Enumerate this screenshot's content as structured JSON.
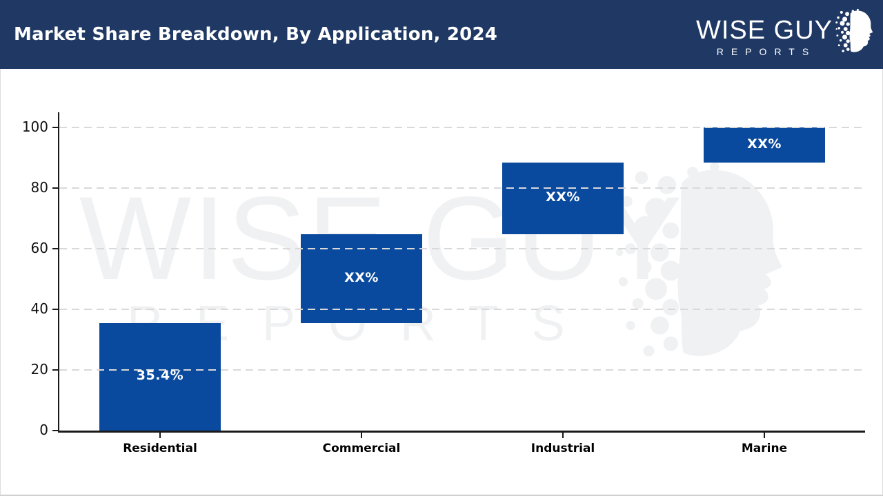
{
  "header": {
    "title": "Market Share Breakdown, By Application, 2024",
    "logo_line1": "WISE GUY",
    "logo_line2": "REPORTS"
  },
  "watermark": {
    "line1": "WISE GUY",
    "line2": "REPORTS"
  },
  "chart_data": {
    "type": "bar",
    "variant": "floating-segment-waterfall, segments sum to 100%",
    "title": "Market Share Breakdown, By Application, 2024",
    "categories": [
      "Residential",
      "Commercial",
      "Industrial",
      "Marine"
    ],
    "segments": [
      {
        "category": "Residential",
        "start": 0,
        "end": 35.4,
        "label": "35.4%"
      },
      {
        "category": "Commercial",
        "start": 35.4,
        "end": 64.8,
        "label": "XX%"
      },
      {
        "category": "Industrial",
        "start": 64.8,
        "end": 88.4,
        "label": "XX%"
      },
      {
        "category": "Marine",
        "start": 88.4,
        "end": 100,
        "label": "XX%"
      }
    ],
    "xlabel": "",
    "ylabel": "",
    "yticks": [
      0,
      20,
      40,
      60,
      80,
      100
    ],
    "ylim": [
      0,
      105
    ],
    "grid": "horizontal-dashed, drawn over bars",
    "legend": "none",
    "colors": {
      "bar": "#0a4a9e",
      "header_bg": "#1f3864",
      "grid_line": "#d9d9d9",
      "axis": "#1a1a1a",
      "bar_label": "#ffffff",
      "watermark": "#f0f1f2"
    }
  }
}
